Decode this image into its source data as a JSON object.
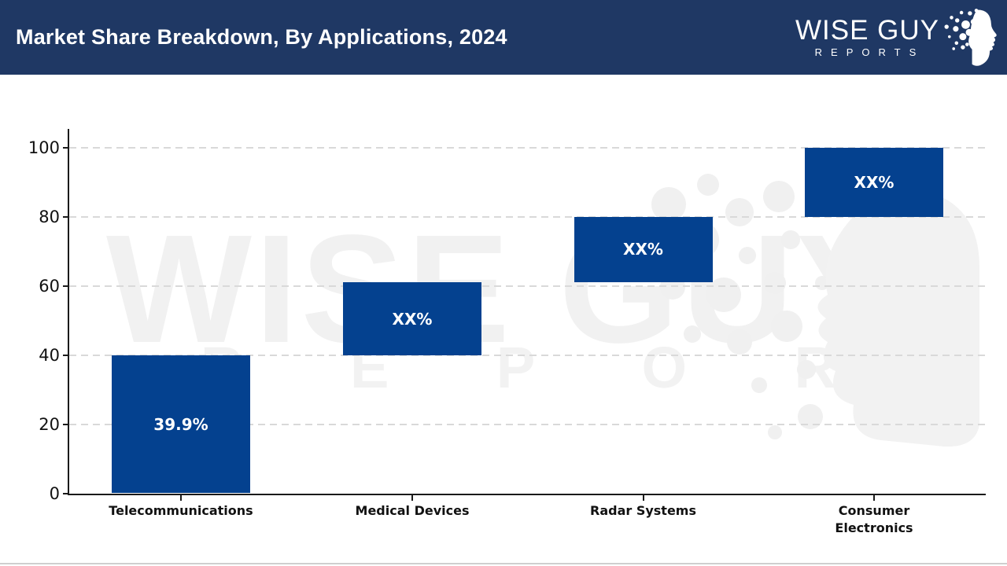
{
  "header": {
    "title": "Market Share Breakdown, By Applications, 2024",
    "logo": {
      "name": "WISE GUY",
      "sub": "REPORTS"
    }
  },
  "watermark": {
    "line1": "WISE GUY",
    "line2": "R E P O R T S"
  },
  "chart_data": {
    "type": "bar",
    "variant": "waterfall",
    "title": "Market Share Breakdown, By Applications, 2024",
    "categories": [
      "Telecommunications",
      "Medical Devices",
      "Radar Systems",
      "Consumer\nElectronics"
    ],
    "bars": [
      {
        "category": "Telecommunications",
        "start": 0,
        "end": 39.9,
        "label": "39.9%"
      },
      {
        "category": "Medical Devices",
        "start": 39.9,
        "end": 61,
        "label": "XX%"
      },
      {
        "category": "Radar Systems",
        "start": 61,
        "end": 80,
        "label": "XX%"
      },
      {
        "category": "Consumer Electronics",
        "start": 80,
        "end": 100,
        "label": "XX%"
      }
    ],
    "values_shown": [
      "39.9%",
      "XX%",
      "XX%",
      "XX%"
    ],
    "xlabel": "",
    "ylabel": "",
    "ylim": [
      0,
      105
    ],
    "yticks": [
      0,
      20,
      40,
      60,
      80,
      100
    ],
    "grid": "horizontal-dashed",
    "legend": false,
    "colors": {
      "bar": "#04418f",
      "header_bg": "#1f3864",
      "gridline": "#d9d9d9",
      "axis": "#1a1a1a",
      "watermark": "#f1f1f1",
      "bar_label": "#ffffff"
    }
  }
}
